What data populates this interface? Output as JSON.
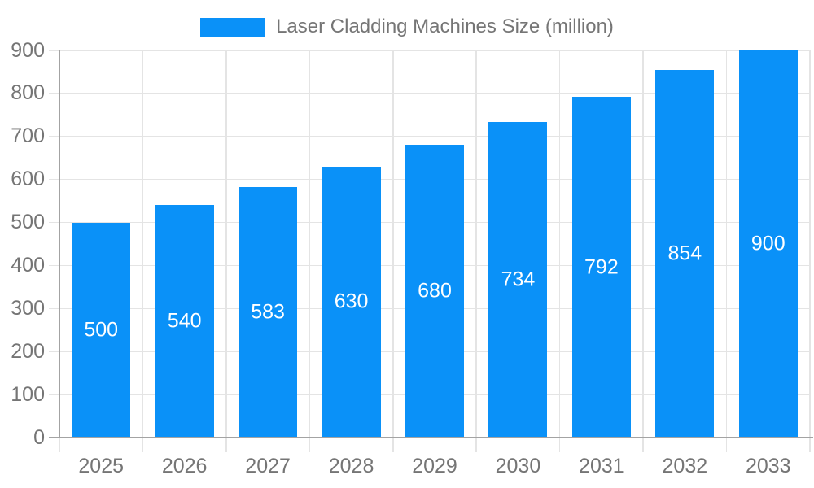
{
  "chart_data": {
    "type": "bar",
    "title": "Laser Cladding Machines Size (million)",
    "categories": [
      "2025",
      "2026",
      "2027",
      "2028",
      "2029",
      "2030",
      "2031",
      "2032",
      "2033"
    ],
    "series": [
      {
        "name": "Laser Cladding Machines Size (million)",
        "values": [
          500,
          540,
          583,
          630,
          680,
          734,
          792,
          854,
          900
        ]
      }
    ],
    "xlabel": "",
    "ylabel": "",
    "ylim": [
      0,
      900
    ],
    "ytick_interval": 100,
    "grid": true,
    "legend_position": "top-center",
    "value_labels": "centered-inside-bars",
    "colors": {
      "bar": "#0a91f8",
      "value_label": "#ffffff",
      "axis_line": "#a3a3a3",
      "gridline": "#e4e4e4",
      "tick_text": "#757575",
      "legend_text": "#757575",
      "background": "#ffffff"
    }
  }
}
